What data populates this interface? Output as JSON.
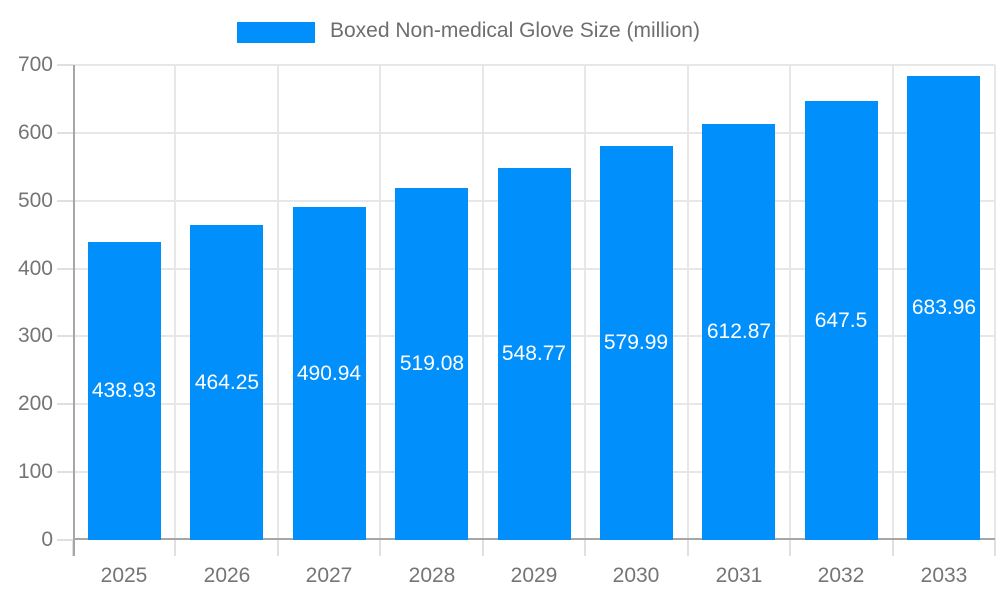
{
  "chart_data": {
    "type": "bar",
    "title": "Boxed Non-medical Glove Size (million)",
    "categories": [
      "2025",
      "2026",
      "2027",
      "2028",
      "2029",
      "2030",
      "2031",
      "2032",
      "2033"
    ],
    "values": [
      438.93,
      464.25,
      490.94,
      519.08,
      548.77,
      579.99,
      612.87,
      647.5,
      683.96
    ],
    "value_labels": [
      "438.93",
      "464.25",
      "490.94",
      "519.08",
      "548.77",
      "579.99",
      "612.87",
      "647.5",
      "683.96"
    ],
    "xlabel": "",
    "ylabel": "",
    "ylim": [
      0,
      700
    ],
    "y_ticks": [
      0,
      100,
      200,
      300,
      400,
      500,
      600,
      700
    ],
    "grid": true,
    "legend": {
      "position": "top",
      "items": [
        {
          "label": "Boxed Non-medical Glove Size (million)",
          "swatch_color": "#008FFB"
        }
      ]
    },
    "colors": {
      "bar": "#008FFB",
      "bar_label_text": "#FFFFFF",
      "axis_text": "#757575",
      "legend_text": "#6E6E6E",
      "grid_line": "#E7E7E7",
      "tick_line": "#E0E0E0",
      "axis_line": "#A6A6A6",
      "background": "#FFFFFF"
    }
  }
}
